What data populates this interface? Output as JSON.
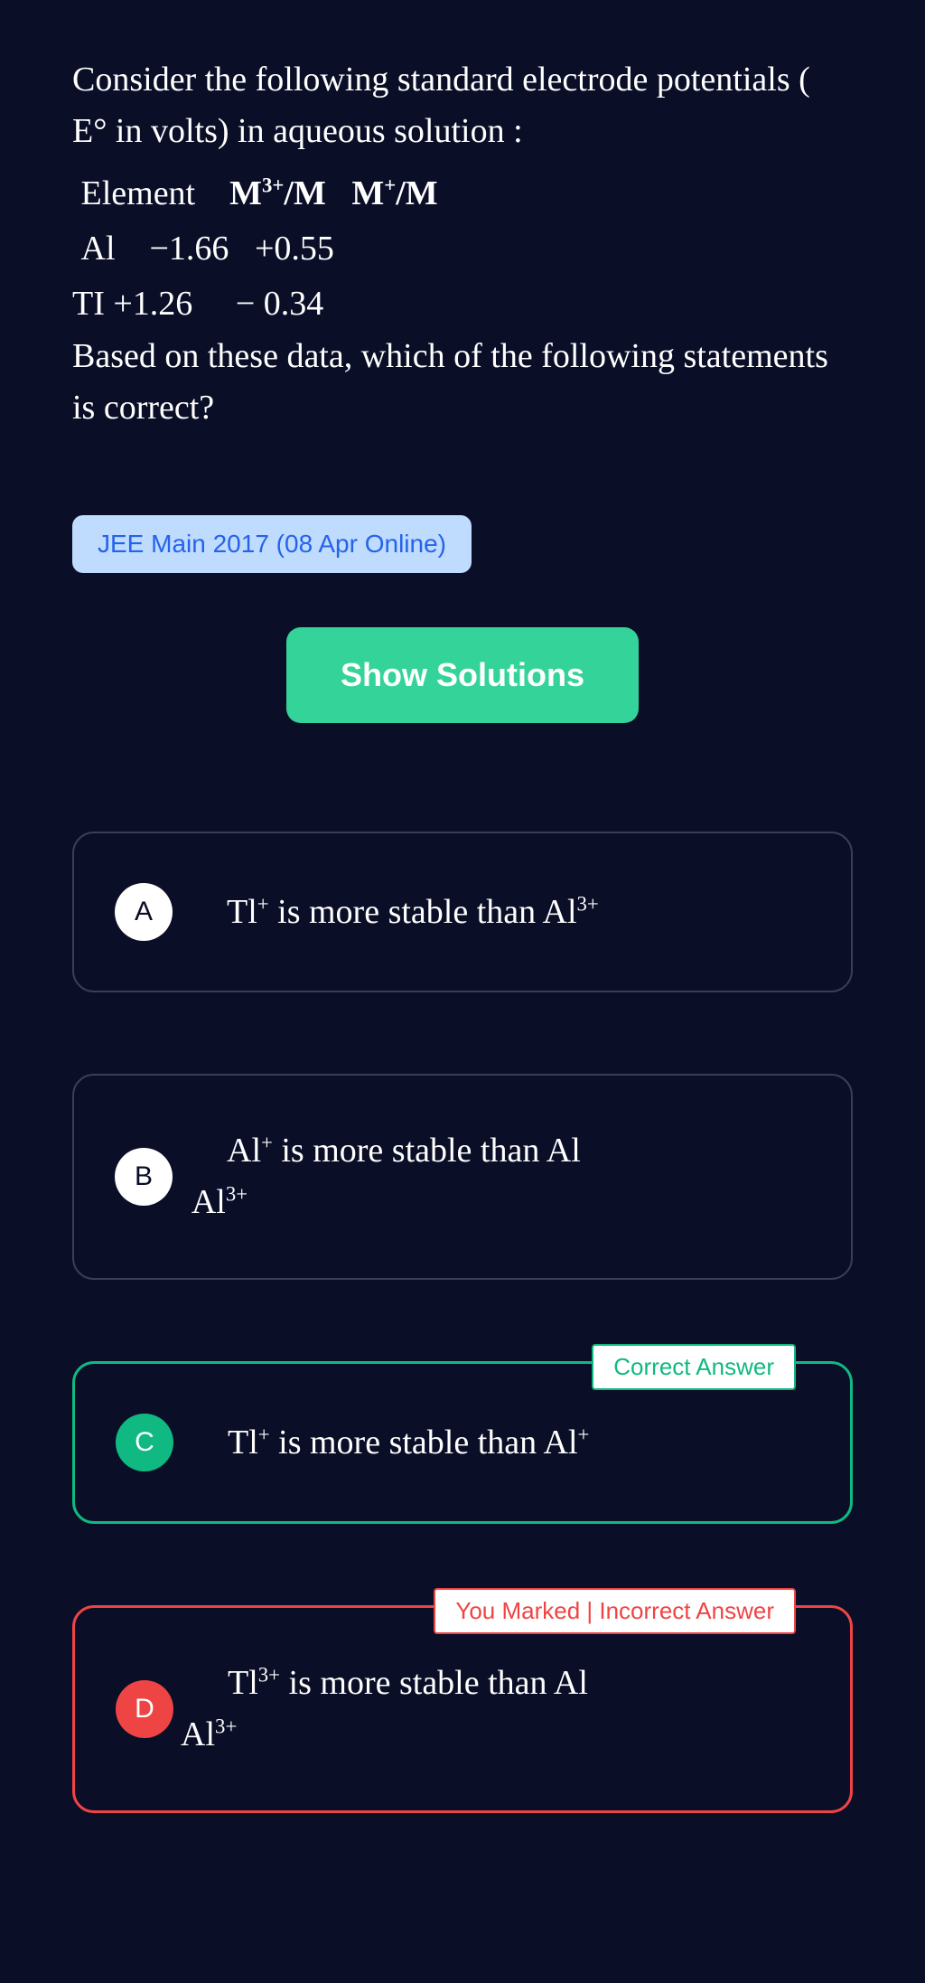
{
  "question": {
    "intro": "Consider the following standard electrode potentials ( E° in volts) in aqueous solution :",
    "table_header_element": "Element",
    "table_header_m3": "M",
    "table_header_m3_sup": "3+",
    "table_header_m3_suffix": "/M",
    "table_header_m1": "M",
    "table_header_m1_sup": "+",
    "table_header_m1_suffix": "/M",
    "row1_el": "Al",
    "row1_v1": "−1.66",
    "row1_v2": "+0.55",
    "row2_el": "TI",
    "row2_v1": "+1.26",
    "row2_v2": "− 0.34",
    "outro": "Based on these data, which of the following statements is correct?"
  },
  "tag": "JEE Main 2017 (08 Apr Online)",
  "show_solutions_label": "Show Solutions",
  "options": {
    "a": {
      "letter": "A",
      "prefix": "Tl",
      "sup1": "+",
      "mid": " is more stable than Al",
      "sup2": "3+",
      "suffix": ""
    },
    "b": {
      "letter": "B",
      "prefix": "Al",
      "sup1": "+",
      "mid": " is more stable than Al",
      "sup2": "3+",
      "suffix": ""
    },
    "c": {
      "letter": "C",
      "prefix": "Tl",
      "sup1": "+",
      "mid": " is more stable than Al",
      "sup2": "+",
      "suffix": ""
    },
    "d": {
      "letter": "D",
      "prefix": "Tl",
      "sup1": "3+",
      "mid": " is more stable than Al",
      "sup2": "3+",
      "suffix": ""
    }
  },
  "badges": {
    "correct": "Correct Answer",
    "incorrect": "You Marked | Incorrect Answer"
  },
  "colors": {
    "background": "#0a0e27",
    "text": "#ffffff",
    "card_border": "#374151",
    "correct": "#10b981",
    "incorrect": "#ef4444",
    "button_bg": "#34d399",
    "tag_bg": "#bfdbfe",
    "tag_text": "#2563eb"
  }
}
